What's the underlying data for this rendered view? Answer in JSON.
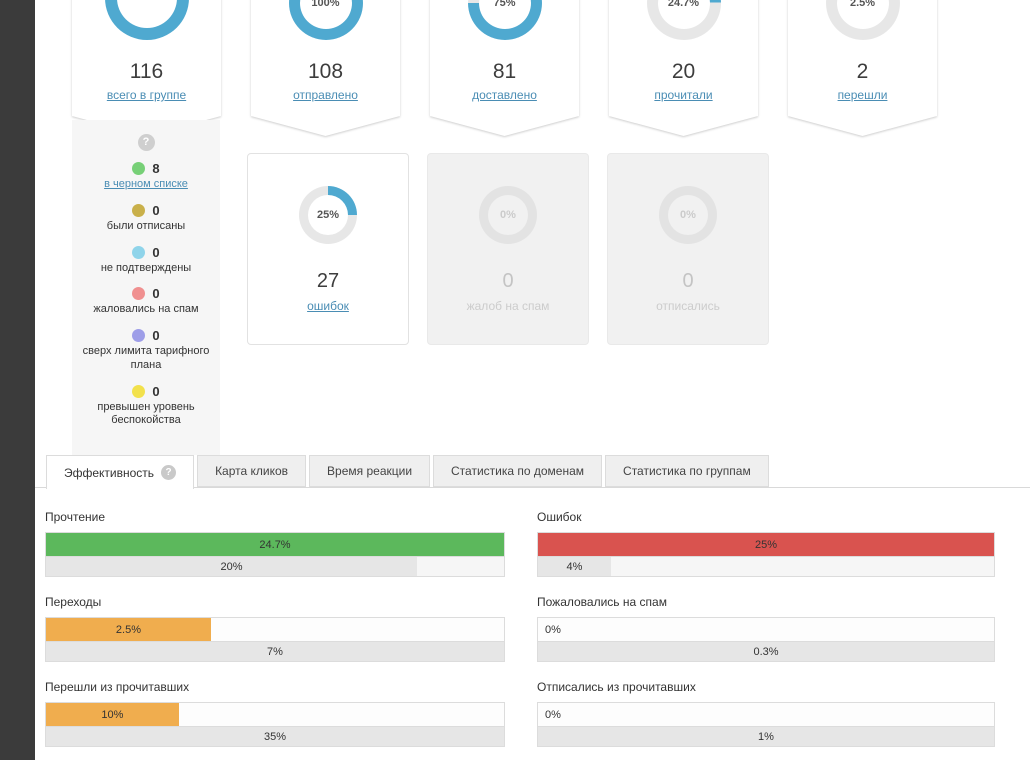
{
  "theme": {
    "accent_blue": "#4fa9d0",
    "link_blue": "#4a8db4",
    "green": "#5cb85c",
    "red": "#d9534f",
    "orange": "#f0ad4e",
    "sidebar_strip": "#3b3b3b"
  },
  "top_cards": [
    {
      "percent": "",
      "pct": 100,
      "value": "116",
      "label": "всего в группе"
    },
    {
      "percent": "100%",
      "pct": 100,
      "value": "108",
      "label": "отправлено"
    },
    {
      "percent": "75%",
      "pct": 75,
      "value": "81",
      "label": "доставлено"
    },
    {
      "percent": "24.7%",
      "pct": 24.7,
      "value": "20",
      "label": "прочитали"
    },
    {
      "percent": "2.5%",
      "pct": 2.5,
      "value": "2",
      "label": "перешли"
    }
  ],
  "legend": {
    "help_icon": "?",
    "items": [
      {
        "color": "#77d077",
        "value": "8",
        "label": "в черном списке",
        "link": true
      },
      {
        "color": "#c9b04a",
        "value": "0",
        "label": "были отписаны"
      },
      {
        "color": "#8fd4ea",
        "value": "0",
        "label": "не подтверждены"
      },
      {
        "color": "#f09090",
        "value": "0",
        "label": "жаловались на спам"
      },
      {
        "color": "#9e9ee8",
        "value": "0",
        "label": "сверх лимита тарифного плана"
      },
      {
        "color": "#f2e14c",
        "value": "0",
        "label": "превышен уровень беспокойства"
      }
    ]
  },
  "mid_cards": [
    {
      "percent": "25%",
      "pct": 25,
      "value": "27",
      "label": "ошибок",
      "active": true
    },
    {
      "percent": "0%",
      "pct": 0,
      "value": "0",
      "label": "жалоб на спам",
      "active": false
    },
    {
      "percent": "0%",
      "pct": 0,
      "value": "0",
      "label": "отписались",
      "active": false
    }
  ],
  "tabs": [
    {
      "label": "Эффективность",
      "active": true,
      "help": "?"
    },
    {
      "label": "Карта кликов"
    },
    {
      "label": "Время реакции"
    },
    {
      "label": "Статистика по доменам"
    },
    {
      "label": "Статистика по группам"
    }
  ],
  "chart_data": {
    "type": "bar",
    "title": "Эффективность",
    "groups": [
      {
        "title": "Прочтение",
        "main": {
          "label": "24.7%",
          "value": 24.7,
          "fill": 100
        },
        "sub": {
          "label": "20%",
          "value": 20,
          "fill": 81
        }
      },
      {
        "title": "Ошибок",
        "main": {
          "label": "25%",
          "value": 25,
          "fill": 100
        },
        "sub": {
          "label": "4%",
          "value": 4,
          "fill": 16
        }
      },
      {
        "title": "Переходы",
        "main": {
          "label": "2.5%",
          "value": 2.5,
          "fill": 36
        },
        "sub": {
          "label": "7%",
          "value": 7,
          "fill": 100
        }
      },
      {
        "title": "Пожаловались на спам",
        "main": {
          "label": "0%",
          "value": 0,
          "fill": 0
        },
        "sub": {
          "label": "0.3%",
          "value": 0.3,
          "fill": 100
        }
      },
      {
        "title": "Перешли из прочитавших",
        "main": {
          "label": "10%",
          "value": 10,
          "fill": 29
        },
        "sub": {
          "label": "35%",
          "value": 35,
          "fill": 100
        }
      },
      {
        "title": "Отписались из прочитавших",
        "main": {
          "label": "0%",
          "value": 0,
          "fill": 0
        },
        "sub": {
          "label": "1%",
          "value": 1,
          "fill": 100
        }
      }
    ]
  }
}
